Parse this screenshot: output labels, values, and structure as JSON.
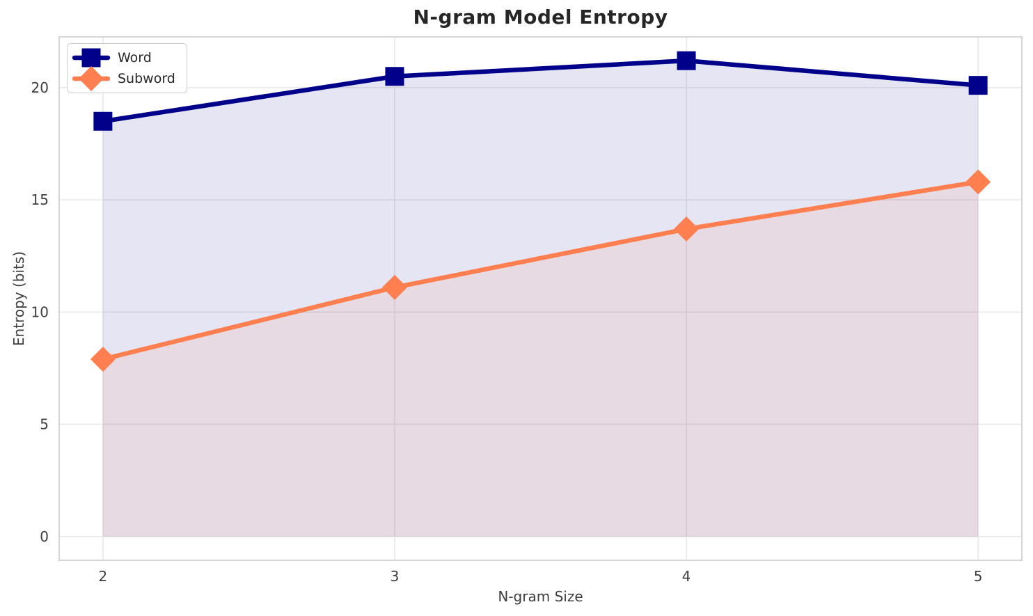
{
  "chart_data": {
    "type": "line",
    "title": "N-gram Model Entropy",
    "xlabel": "N-gram Size",
    "ylabel": "Entropy (bits)",
    "x": [
      2,
      3,
      4,
      5
    ],
    "series": [
      {
        "name": "Word",
        "color": "#00008b",
        "marker": "square",
        "values": [
          18.5,
          20.5,
          21.2,
          20.1
        ],
        "fill_to_zero": true,
        "fill_alpha": 0.1
      },
      {
        "name": "Subword",
        "color": "#ff7f50",
        "marker": "diamond",
        "values": [
          7.9,
          11.1,
          13.7,
          15.8
        ],
        "fill_to_zero": true,
        "fill_alpha": 0.1
      }
    ],
    "xticks": [
      2,
      3,
      4,
      5
    ],
    "yticks": [
      0,
      5,
      10,
      15,
      20
    ],
    "xlim": [
      1.85,
      5.15
    ],
    "ylim": [
      -1.06,
      22.26
    ],
    "grid": true,
    "legend_position": "upper-left",
    "colors": {
      "grid": "#eaeaea",
      "spine": "#cccccc",
      "title_text": "#262626",
      "tick_text": "#3d3d3d"
    }
  }
}
